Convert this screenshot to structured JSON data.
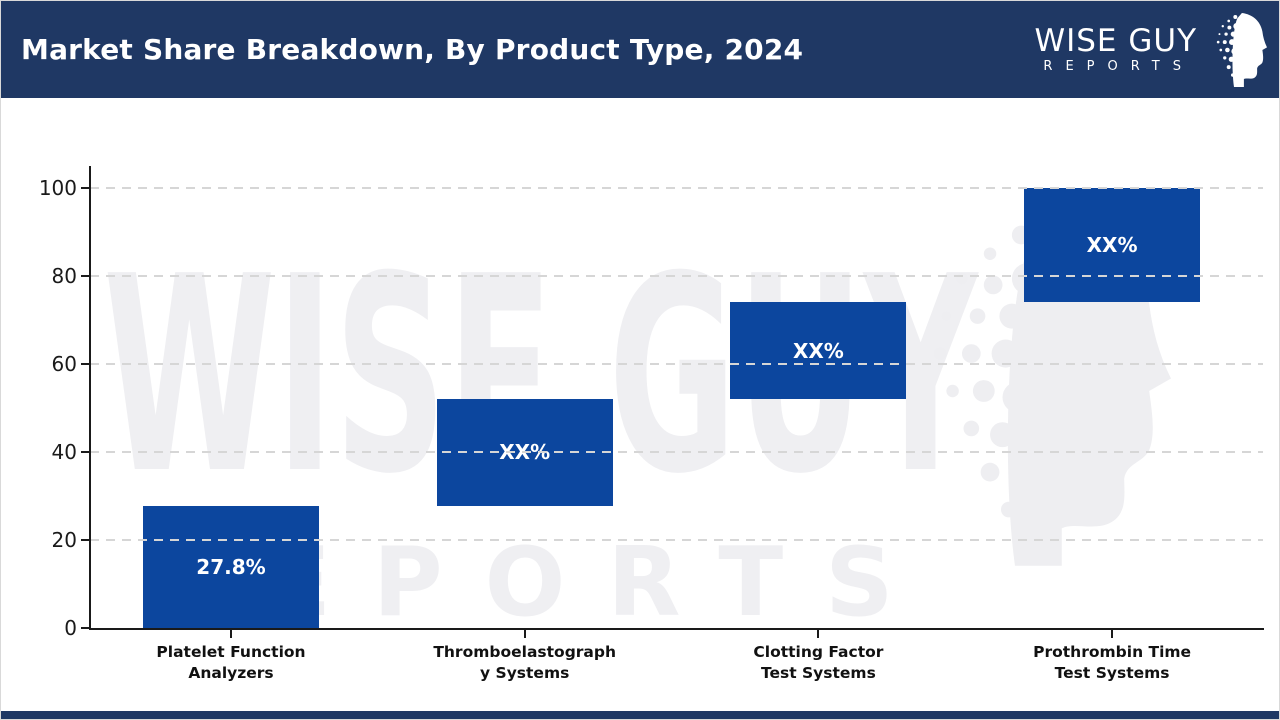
{
  "header": {
    "logo_line1": "WISE GUY",
    "logo_line2": "REPORTS"
  },
  "watermark": {
    "line1": "WISE GUY",
    "line2": "REPORTS"
  },
  "chart_data": {
    "type": "bar",
    "subtype": "waterfall-stacked-segments",
    "title": "Market Share Breakdown, By Product Type, 2024",
    "categories": [
      "Platelet Function\nAnalyzers",
      "Thromboelastograph\ny Systems",
      "Clotting Factor\nTest Systems",
      "Prothrombin Time\nTest Systems"
    ],
    "segments": [
      {
        "category": "Platelet Function Analyzers",
        "start": 0,
        "end": 27.8,
        "label": "27.8%"
      },
      {
        "category": "Thromboelastography Systems",
        "start": 27.8,
        "end": 52,
        "label": "XX%"
      },
      {
        "category": "Clotting Factor Test Systems",
        "start": 52,
        "end": 74,
        "label": "XX%"
      },
      {
        "category": "Prothrombin Time Test Systems",
        "start": 74,
        "end": 100,
        "label": "XX%"
      }
    ],
    "ylim": [
      0,
      100
    ],
    "yticks": [
      0,
      20,
      40,
      60,
      80,
      100
    ],
    "grid": "horizontal-dashed",
    "legend": "none",
    "xlabel": "",
    "ylabel": ""
  },
  "colors": {
    "header_navy": "#1f3864",
    "bar_blue": "#0c469e",
    "bar_label_white": "#ffffff",
    "watermark_gray": "#efeff2",
    "gridline_gray": "#d6d6d6",
    "axis_black": "#1a1a1a"
  }
}
